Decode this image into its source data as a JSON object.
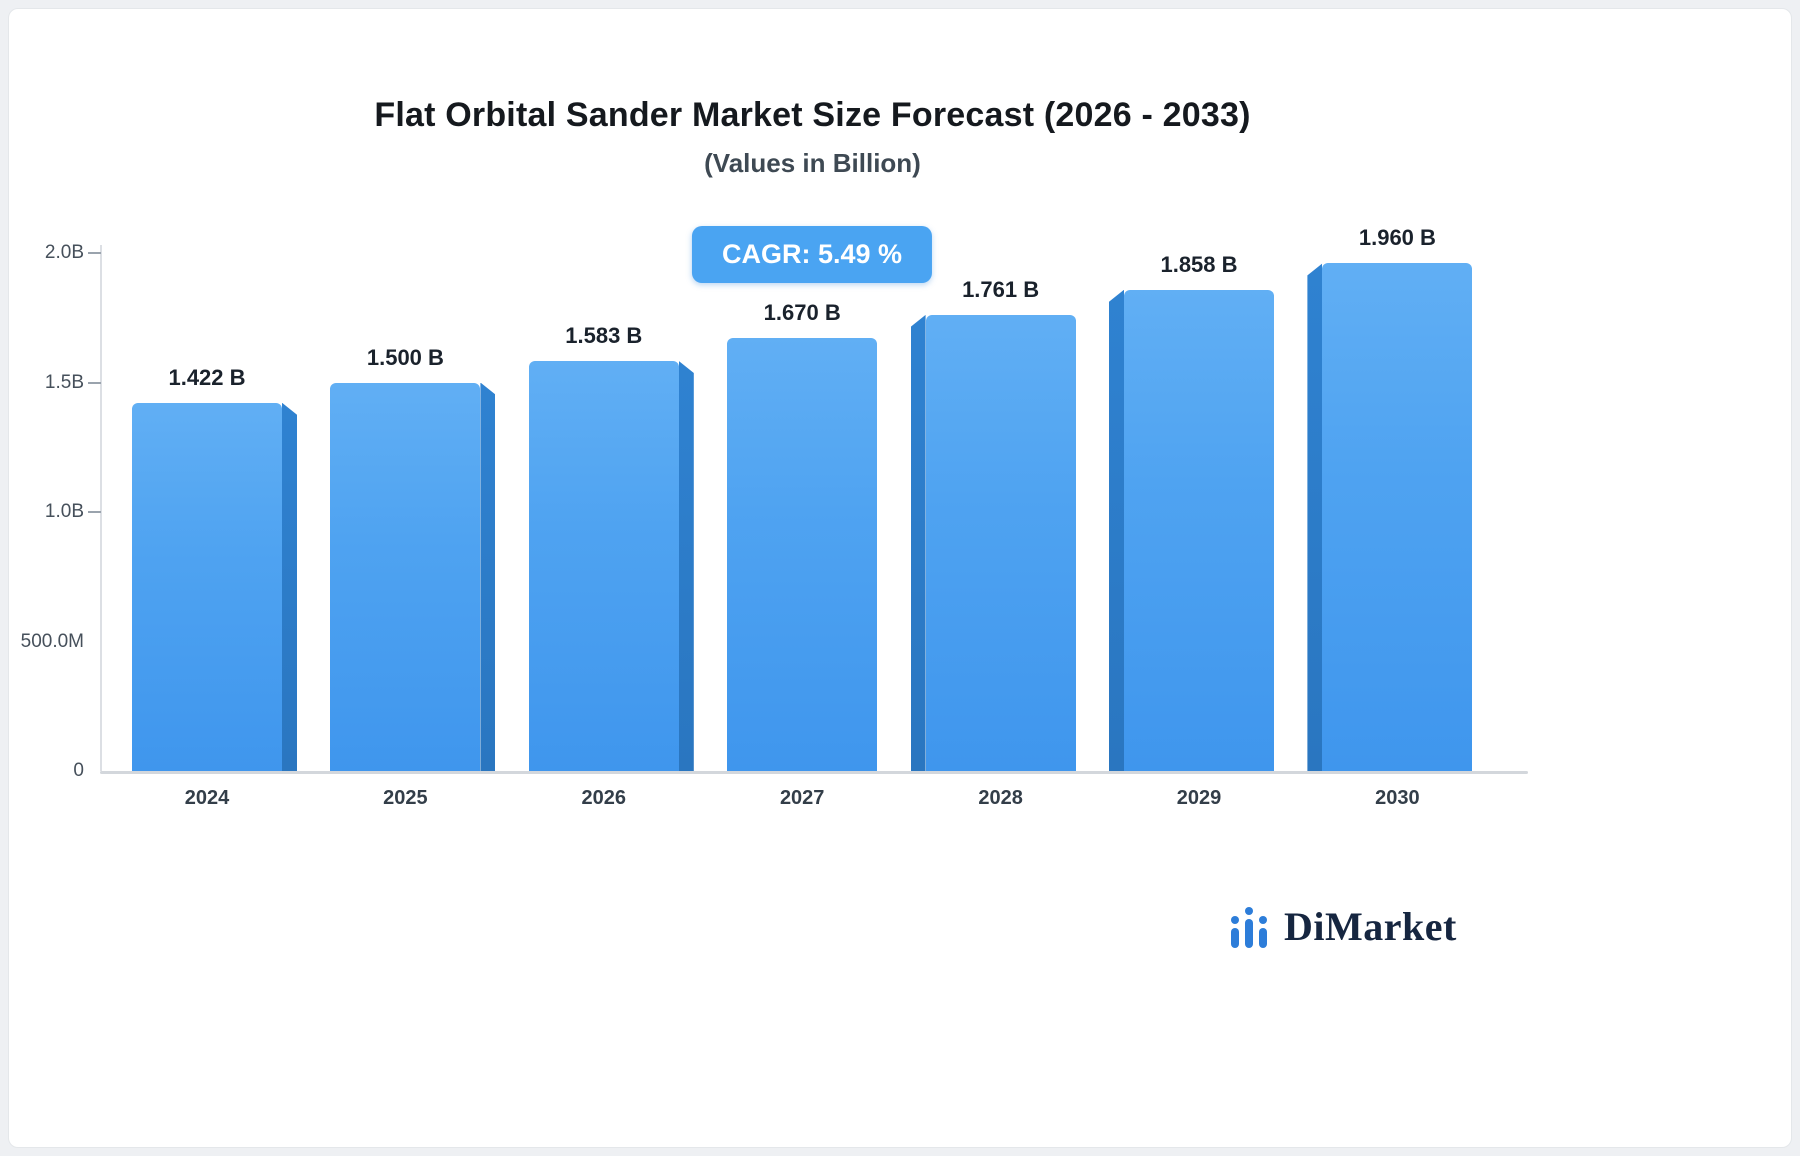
{
  "header": {
    "title": "Flat Orbital Sander Market Size Forecast (2026 - 2033)",
    "subtitle": "(Values in Billion)"
  },
  "cagr": {
    "label": "CAGR: 5.49 %"
  },
  "brand": {
    "name": "DiMarket"
  },
  "chart_data": {
    "type": "bar",
    "title": "Flat Orbital Sander Market Size Forecast (2026 - 2033)",
    "subtitle": "(Values in Billion)",
    "categories": [
      "2024",
      "2025",
      "2026",
      "2027",
      "2028",
      "2029",
      "2030"
    ],
    "values": [
      1.422,
      1.5,
      1.583,
      1.67,
      1.761,
      1.858,
      1.96
    ],
    "labels": [
      "1.422 B",
      "1.500 B",
      "1.583 B",
      "1.670 B",
      "1.761 B",
      "1.858 B",
      "1.960 B"
    ],
    "unit": "Billion",
    "yticks": [
      {
        "label": "2.0B",
        "value": 2.0
      },
      {
        "label": "1.5B",
        "value": 1.5
      },
      {
        "label": "1.0B",
        "value": 1.0
      },
      {
        "label": "500.0M",
        "value": 0.5
      },
      {
        "label": "0",
        "value": 0
      }
    ],
    "ylim": [
      0,
      2.0
    ],
    "grid": "off",
    "legend": "none",
    "colors": {
      "bar_top": "#61aff4",
      "bar_bottom": "#3f96ed",
      "bar_side": "#2c7ac6",
      "badge_bg": "#4aa4f2",
      "axis": "#d3d7dc",
      "brand_blue": "#2d7dd9",
      "brand_navy": "#162640"
    }
  }
}
